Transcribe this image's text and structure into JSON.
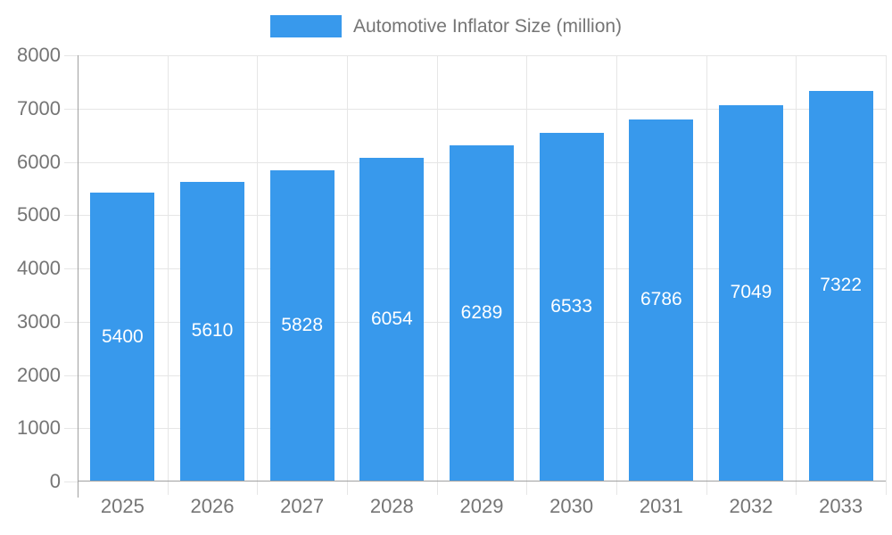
{
  "colors": {
    "bar": "#3899EC",
    "grid": "#E6E6E6",
    "axis": "#A0A0A0",
    "text": "#757575",
    "bar_label": "#FFFFFF",
    "background": "#FFFFFF"
  },
  "chart_data": {
    "type": "bar",
    "title": "Automotive Inflator Size (million)",
    "series_name": "Automotive Inflator Size (million)",
    "categories": [
      "2025",
      "2026",
      "2027",
      "2028",
      "2029",
      "2030",
      "2031",
      "2032",
      "2033"
    ],
    "values": [
      5400,
      5610,
      5828,
      6054,
      6289,
      6533,
      6786,
      7049,
      7322
    ],
    "value_labels": [
      "5400",
      "5610",
      "5828",
      "6054",
      "6289",
      "6533",
      "6786",
      "7049",
      "7322"
    ],
    "xlabel": "",
    "ylabel": "",
    "ylim": [
      0,
      8000
    ],
    "ytick_step": 1000,
    "ytick_labels": [
      "0",
      "1000",
      "2000",
      "3000",
      "4000",
      "5000",
      "6000",
      "7000",
      "8000"
    ],
    "grid": true,
    "legend_position": "top-center",
    "bar_label_position": "inside-middle"
  }
}
